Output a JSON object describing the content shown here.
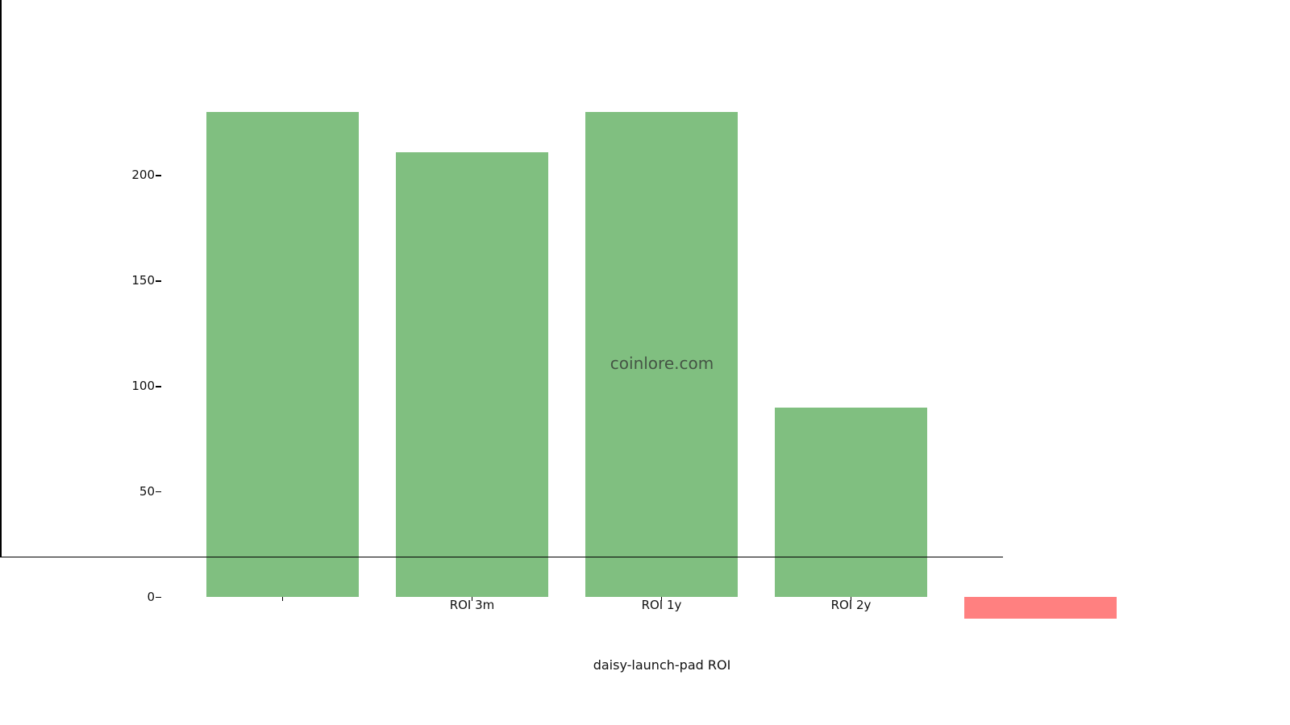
{
  "page": {
    "background": "#ffffff"
  },
  "chart_data": {
    "type": "bar",
    "categories": [
      "",
      "ROI 3m",
      "ROI 1y",
      "ROI 2y",
      ""
    ],
    "values": [
      230,
      211,
      230,
      90,
      -10
    ],
    "title": "daisy-launch-pad ROI",
    "watermark": "coinlore.com",
    "xlabel": "",
    "ylabel": "",
    "yticks": [
      0,
      50,
      100,
      150,
      200
    ],
    "ylim": [
      -22,
      242
    ],
    "grid": false,
    "legend": "none",
    "colors": {
      "positive_bar": "#80bf80",
      "negative_bar": "#ff8080",
      "axis": "#000000",
      "tick_label": "#111111",
      "watermark": "#373c37",
      "title": "#111111"
    }
  }
}
